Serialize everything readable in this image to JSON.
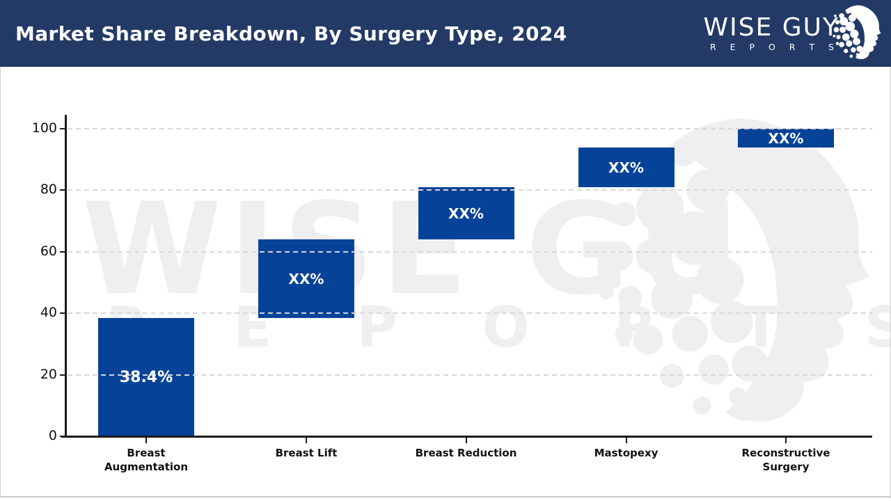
{
  "header": {
    "title": "Market Share Breakdown, By Surgery Type, 2024",
    "logo": {
      "brand_top": "WISE GUY",
      "brand_bottom": "R E P O R T S"
    }
  },
  "watermark": {
    "line1": "WISE GUY",
    "line2": "R E P O R T S"
  },
  "colors": {
    "header_bg": "#233a66",
    "header_text": "#ffffff",
    "bar_fill": "#054298",
    "bar_label_text": "#ffffff",
    "gridline": "#d8d8d8",
    "axis": "#1a1a1a",
    "tick_text": "#111111",
    "watermark": "#efeff1",
    "page_bg": "#ffffff",
    "border": "#cccccc"
  },
  "chart_data": {
    "type": "bar",
    "subtype": "waterfall",
    "title": "Market Share Breakdown, By Surgery Type, 2024",
    "xlabel": "",
    "ylabel": "",
    "ylim": [
      0,
      105
    ],
    "yticks": [
      0,
      20,
      40,
      60,
      80,
      100
    ],
    "grid": "horizontal-dashed",
    "legend": "none",
    "categories": [
      "Breast Augmentation",
      "Breast Lift",
      "Breast Reduction",
      "Mastopexy",
      "Reconstructive Surgery"
    ],
    "values": [
      38.4,
      25.6,
      17.0,
      12.8,
      6.2
    ],
    "segments": [
      {
        "category": "Breast Augmentation",
        "label_lines": [
          "Breast",
          "Augmentation"
        ],
        "start": 0,
        "end": 38.4,
        "value_label": "38.4%"
      },
      {
        "category": "Breast Lift",
        "label_lines": [
          "Breast Lift"
        ],
        "start": 38.4,
        "end": 64.0,
        "value_label": "XX%"
      },
      {
        "category": "Breast Reduction",
        "label_lines": [
          "Breast Reduction"
        ],
        "start": 64.0,
        "end": 81.0,
        "value_label": "XX%"
      },
      {
        "category": "Mastopexy",
        "label_lines": [
          "Mastopexy"
        ],
        "start": 81.0,
        "end": 93.8,
        "value_label": "XX%"
      },
      {
        "category": "Reconstructive Surgery",
        "label_lines": [
          "Reconstructive",
          "Surgery"
        ],
        "start": 93.8,
        "end": 100.0,
        "value_label": "XX%"
      }
    ]
  }
}
